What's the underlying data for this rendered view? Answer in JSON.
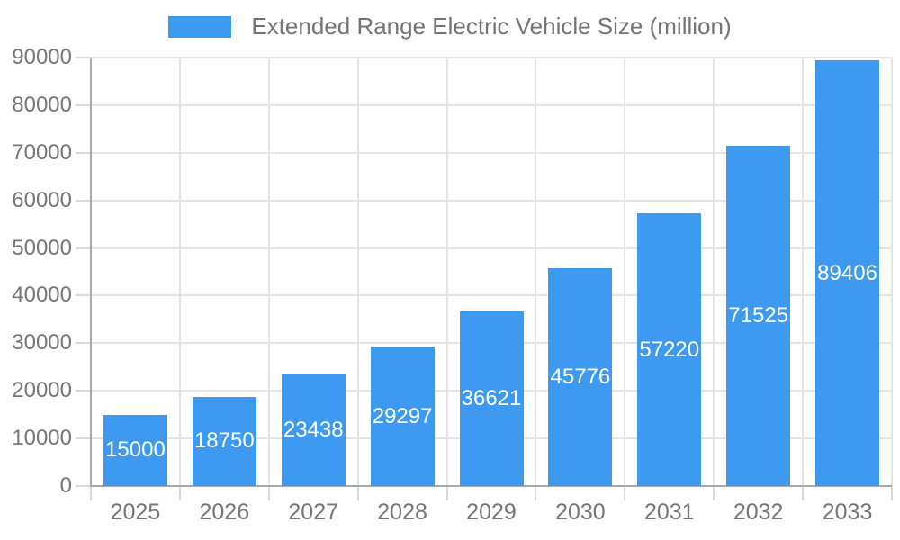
{
  "legend": {
    "items": [
      {
        "label": "Extended Range Electric Vehicle Size (million)",
        "color": "#3e9af0"
      }
    ]
  },
  "chart_data": {
    "type": "bar",
    "title": "Extended Range Electric Vehicle Size (million)",
    "categories": [
      "2025",
      "2026",
      "2027",
      "2028",
      "2029",
      "2030",
      "2031",
      "2032",
      "2033"
    ],
    "values": [
      15000,
      18750,
      23438,
      29297,
      36621,
      45776,
      57220,
      71525,
      89406
    ],
    "value_labels": [
      "15000",
      "18750",
      "23438",
      "29297",
      "36621",
      "45776",
      "57220",
      "71525",
      "89406"
    ],
    "series": [
      {
        "name": "Extended Range Electric Vehicle Size (million)",
        "values": [
          15000,
          18750,
          23438,
          29297,
          36621,
          45776,
          57220,
          71525,
          89406
        ]
      }
    ],
    "xlabel": "",
    "ylabel": "",
    "ylim": [
      0,
      90000
    ],
    "ytick_step": 10000,
    "yticks": [
      "0",
      "10000",
      "20000",
      "30000",
      "40000",
      "50000",
      "60000",
      "70000",
      "80000",
      "90000"
    ],
    "grid": true,
    "legend_position": "top",
    "colors": {
      "bar": "#3e9af0",
      "grid": "#e4e4e4",
      "tick": "#d9d9d9",
      "axis": "#a8a8a8",
      "axis_label": "#757575",
      "value_label": "#ffffff",
      "background": "#ffffff"
    }
  }
}
